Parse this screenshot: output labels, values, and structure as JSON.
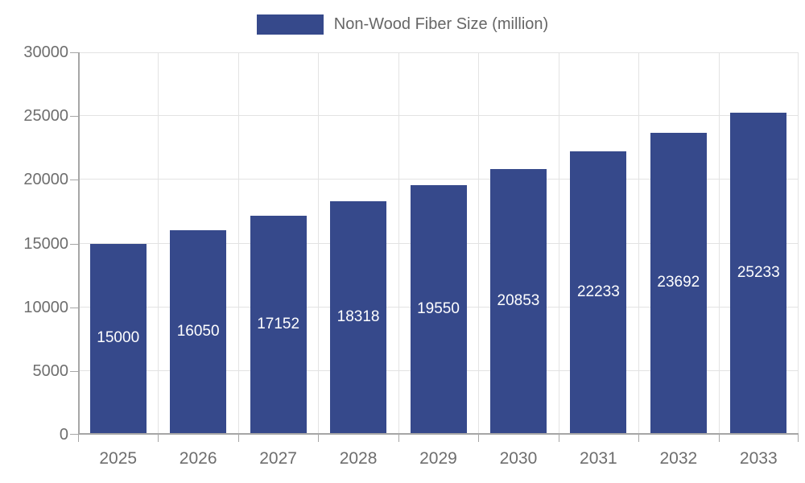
{
  "chart_data": {
    "type": "bar",
    "legend": "Non-Wood Fiber Size (million)",
    "categories": [
      "2025",
      "2026",
      "2027",
      "2028",
      "2029",
      "2030",
      "2031",
      "2032",
      "2033"
    ],
    "values": [
      15000,
      16050,
      17152,
      18318,
      19550,
      20853,
      22233,
      23692,
      25233
    ],
    "value_labels": [
      "15000",
      "16050",
      "17152",
      "18318",
      "19550",
      "20853",
      "22233",
      "23692",
      "25233"
    ],
    "title": "",
    "xlabel": "",
    "ylabel": "",
    "ylim": [
      0,
      30000
    ],
    "yticks": [
      "0",
      "5000",
      "10000",
      "15000",
      "20000",
      "25000",
      "30000"
    ],
    "ytick_values": [
      0,
      5000,
      10000,
      15000,
      20000,
      25000,
      30000
    ],
    "grid": true,
    "legend_position": "top",
    "colors": {
      "bar": "#36498b",
      "bar_label_text": "#ffffff",
      "axis_line": "#a6a6a6",
      "grid_line": "#e3e3e3",
      "tick_label_text": "#6e6e6e",
      "legend_text": "#666666"
    }
  }
}
